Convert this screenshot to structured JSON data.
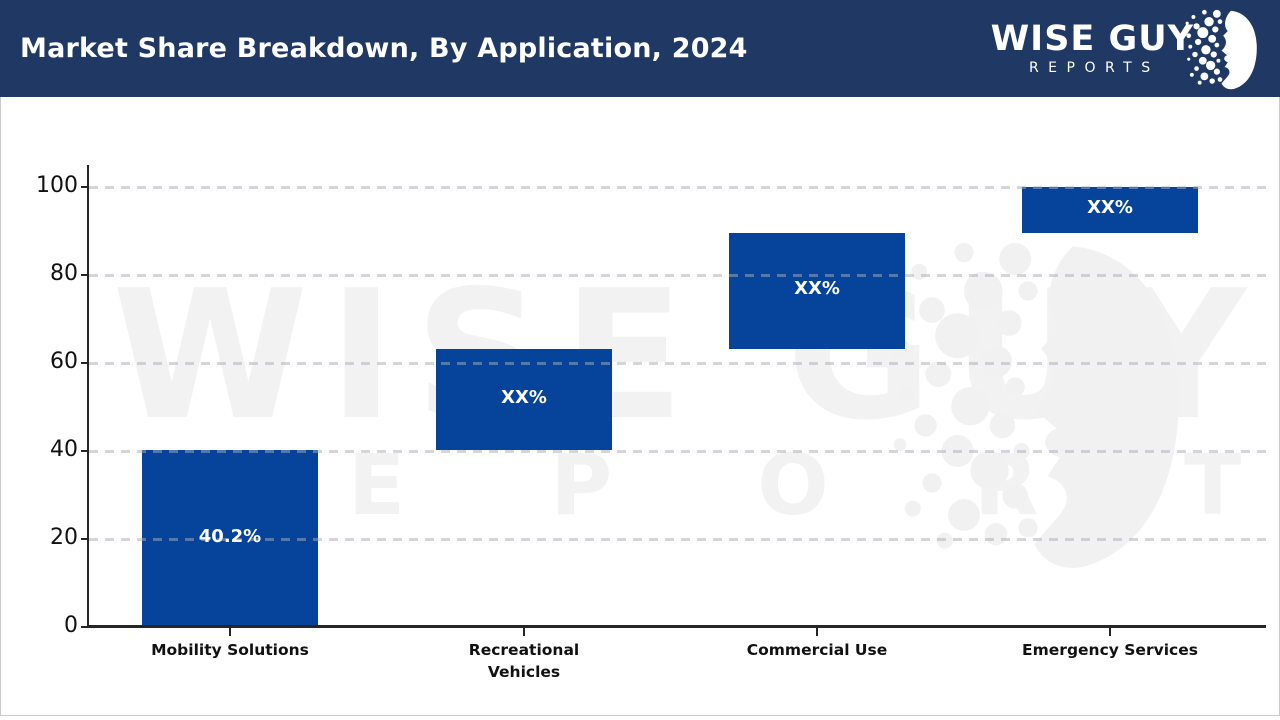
{
  "header": {
    "title": "Market Share Breakdown, By Application, 2024",
    "logo": {
      "line1": "WISE GUY",
      "line2": "REPORTS"
    }
  },
  "watermark": {
    "line1": "WISE GUY",
    "line2": "R E P O R T S"
  },
  "chart_data": {
    "type": "bar",
    "subtype": "waterfall",
    "title": "Market Share Breakdown, By Application, 2024",
    "xlabel": "",
    "ylabel": "",
    "categories": [
      "Mobility Solutions",
      "Recreational\nVehicles",
      "Commercial Use",
      "Emergency Services"
    ],
    "segments": [
      {
        "category": "Mobility Solutions",
        "start": 0,
        "end": 40.2,
        "label": "40.2%"
      },
      {
        "category": "Recreational Vehicles",
        "start": 40.2,
        "end": 63.2,
        "label": "XX%"
      },
      {
        "category": "Commercial Use",
        "start": 63.2,
        "end": 89.5,
        "label": "XX%"
      },
      {
        "category": "Emergency Services",
        "start": 89.5,
        "end": 100,
        "label": "XX%"
      }
    ],
    "yticks": [
      0,
      20,
      40,
      60,
      80,
      100
    ],
    "ylim": [
      0,
      104
    ],
    "grid": "dashed-horizontal, drawn over bars",
    "legend": null,
    "colors": {
      "bar": "#06439a",
      "bar_label": "#ffffff",
      "axis": "#262626",
      "grid": "#d9dbe0",
      "header_bg": "#1f3864",
      "title_text": "#ffffff",
      "watermark": "#f2f2f2"
    }
  }
}
